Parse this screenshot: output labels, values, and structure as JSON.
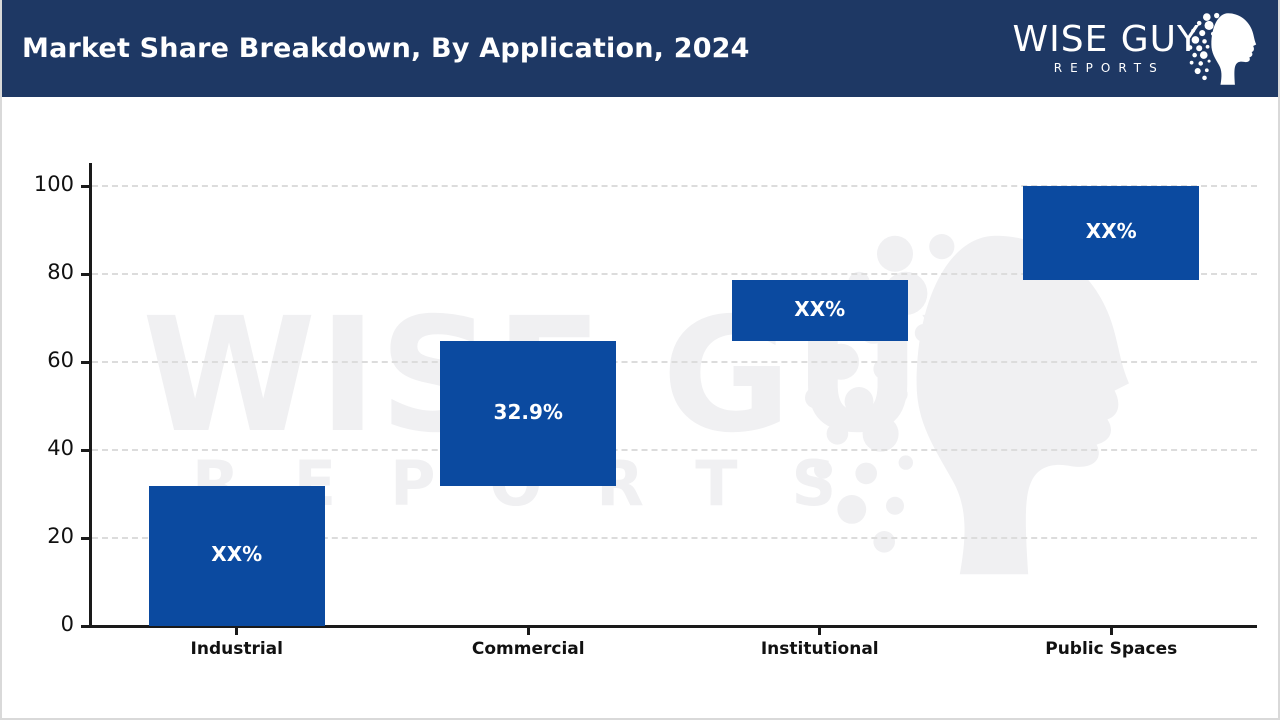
{
  "header": {
    "title": "Market Share Breakdown, By Application, 2024",
    "logo": {
      "line1": "WISE GUY",
      "line2": "REPORTS"
    }
  },
  "watermark": {
    "line1": "WISE GUY",
    "line2": "REPORTS"
  },
  "colors": {
    "header_bg": "#1e3864",
    "bar": "#0b4aa0",
    "grid": "#dcdcdc",
    "axis": "#1a1a1a",
    "tick_label": "#111111",
    "bar_label": "#ffffff",
    "watermark": "#f0f0f2"
  },
  "chart_data": {
    "type": "bar",
    "subtype": "waterfall",
    "title": "Market Share Breakdown, By Application, 2024",
    "categories": [
      "Industrial",
      "Commercial",
      "Institutional",
      "Public Spaces"
    ],
    "segments": [
      {
        "category": "Industrial",
        "start": 0,
        "end": 31.8,
        "value": 31.8,
        "label": "XX%"
      },
      {
        "category": "Commercial",
        "start": 31.8,
        "end": 64.7,
        "value": 32.9,
        "label": "32.9%"
      },
      {
        "category": "Institutional",
        "start": 64.7,
        "end": 78.6,
        "value": 13.9,
        "label": "XX%"
      },
      {
        "category": "Public Spaces",
        "start": 78.6,
        "end": 100,
        "value": 21.4,
        "label": "XX%"
      }
    ],
    "y_ticks": [
      0,
      20,
      40,
      60,
      80,
      100
    ],
    "ylim": [
      0,
      105
    ],
    "xlabel": "",
    "ylabel": "",
    "grid": "dashed-horizontal",
    "legend": "none"
  }
}
